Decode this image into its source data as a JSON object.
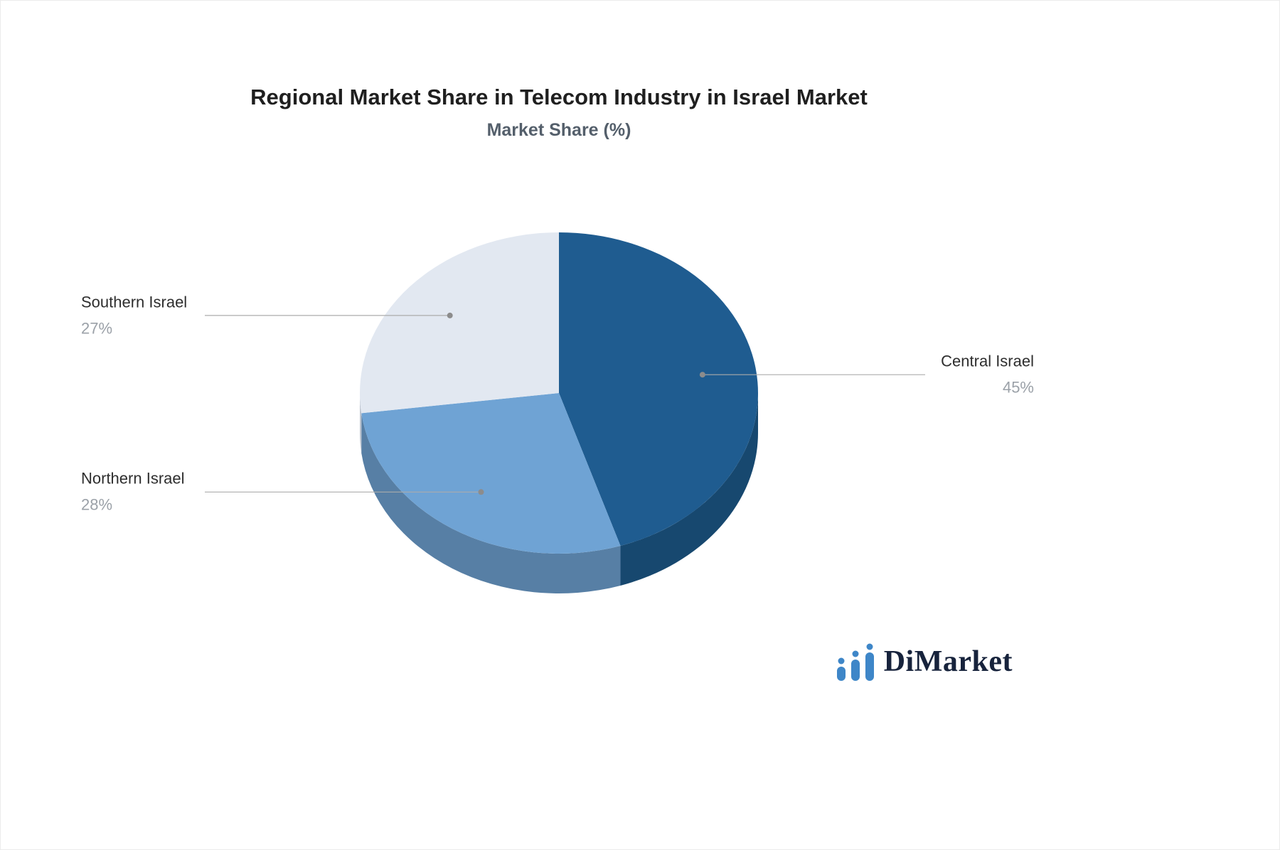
{
  "page": {
    "background": "#ffffff"
  },
  "chart_data": {
    "type": "pie",
    "title": "Regional Market Share in Telecom Industry in Israel Market",
    "subtitle": "Market Share (%)",
    "unit": "%",
    "start_angle_deg": -90,
    "direction": "clockwise",
    "slices": [
      {
        "name": "Central Israel",
        "value": 45,
        "percent_label": "45%",
        "color": "#1F5C90",
        "side_color": "#17486F"
      },
      {
        "name": "Northern Israel",
        "value": 28,
        "percent_label": "28%",
        "color": "#6FA3D4",
        "side_color": "#577FA5"
      },
      {
        "name": "Southern Israel",
        "value": 27,
        "percent_label": "27%",
        "color": "#E2E8F1",
        "side_color": "#BCC4CF"
      }
    ],
    "label_line_color": "#ABABAB",
    "label_dot_color": "#8C8C8C",
    "label_name_color": "#2E2E2E",
    "label_value_color": "#9BA1A8",
    "legend_position": "none",
    "grid": false
  },
  "brand": {
    "name": "DiMarket",
    "icon_color": "#3E86C8",
    "text_color": "#17233C"
  }
}
